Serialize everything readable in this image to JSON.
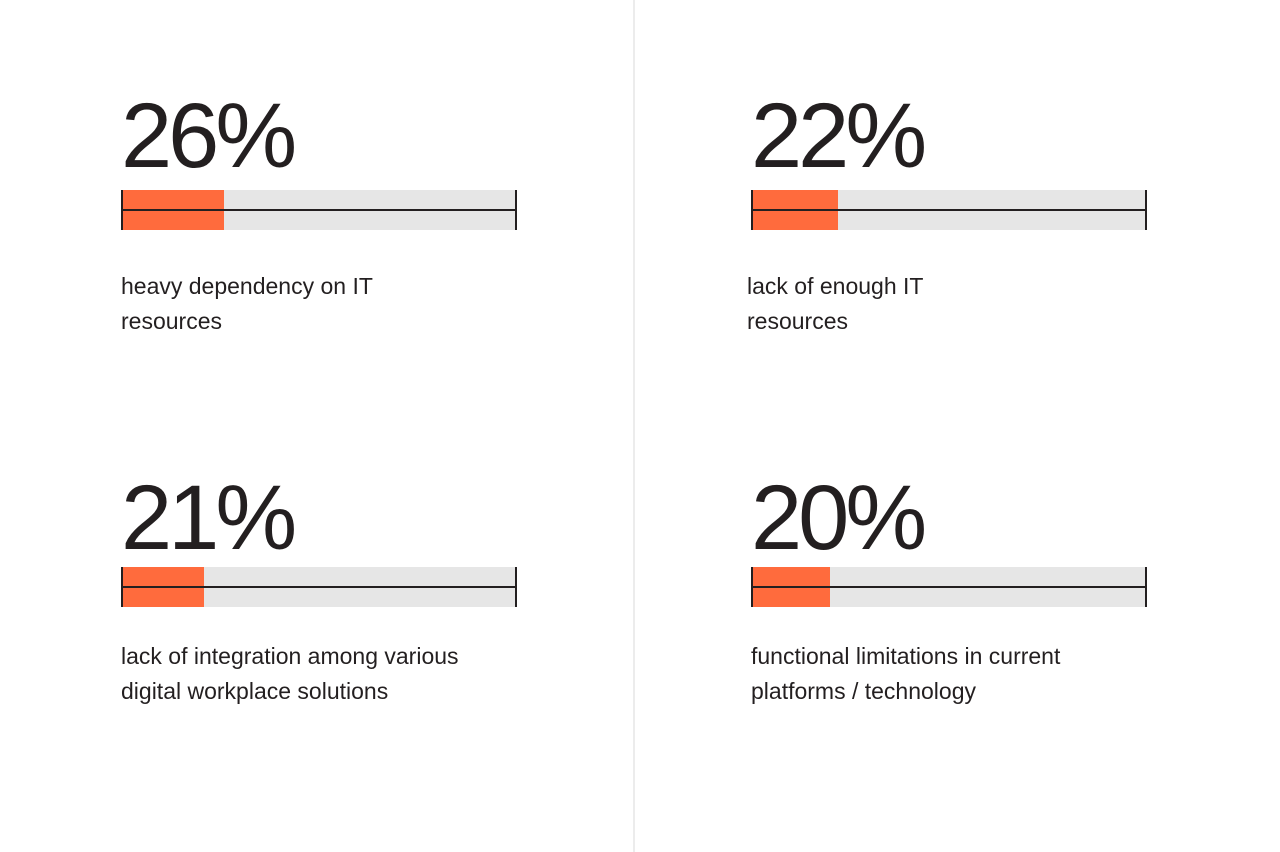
{
  "chart_data": [
    {
      "type": "bar",
      "value_label": "26%",
      "values": [
        26
      ],
      "ylim": [
        0,
        100
      ],
      "caption_lines": [
        "heavy dependency on IT",
        "resources"
      ]
    },
    {
      "type": "bar",
      "value_label": "22%",
      "values": [
        22
      ],
      "ylim": [
        0,
        100
      ],
      "caption_lines": [
        "lack of enough IT",
        "resources"
      ]
    },
    {
      "type": "bar",
      "value_label": "21%",
      "values": [
        21
      ],
      "ylim": [
        0,
        100
      ],
      "caption_lines": [
        "lack of integration among various",
        "digital workplace solutions"
      ]
    },
    {
      "type": "bar",
      "value_label": "20%",
      "values": [
        20
      ],
      "ylim": [
        0,
        100
      ],
      "caption_lines": [
        "functional limitations in current",
        "platforms / technology"
      ]
    }
  ],
  "colors": {
    "fill": "#ff6b3d",
    "track": "#e6e6e6",
    "ink": "#231f20",
    "divider": "#ececec"
  }
}
